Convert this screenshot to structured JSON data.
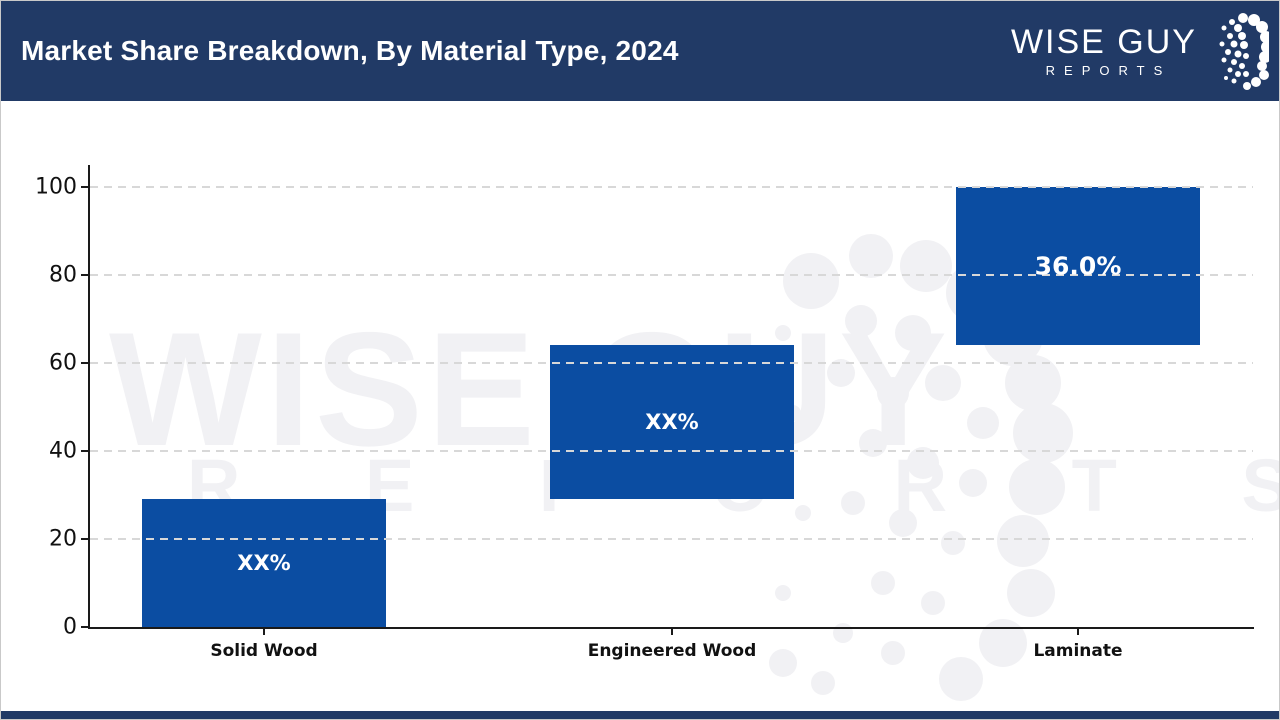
{
  "header": {
    "title": "Market Share Breakdown, By Material Type, 2024",
    "logo_line1": "WISE GUY",
    "logo_line2": "REPORTS"
  },
  "watermark": {
    "line1": "WISE GUY",
    "line2": "REPORTS"
  },
  "colors": {
    "header_bg": "#213a66",
    "footer_bg": "#213a66",
    "bar": "#0b4da2",
    "gridline": "#d8d8d8",
    "axis": "#1a1a1a",
    "watermark": "#f1f1f4"
  },
  "chart_data": {
    "type": "bar",
    "variant": "waterfall-stacked",
    "title": "Market Share Breakdown, By Material Type, 2024",
    "categories": [
      "Solid Wood",
      "Engineered Wood",
      "Laminate"
    ],
    "bars": [
      {
        "category": "Solid Wood",
        "start": 0,
        "end": 29,
        "value_label": "XX%"
      },
      {
        "category": "Engineered Wood",
        "start": 29,
        "end": 64,
        "value_label": "XX%"
      },
      {
        "category": "Laminate",
        "start": 64,
        "end": 100,
        "value_label": "36.0%"
      }
    ],
    "yticks": [
      0,
      20,
      40,
      60,
      80,
      100
    ],
    "ylim": [
      0,
      105
    ],
    "xlabel": "",
    "ylabel": "",
    "grid": "horizontal-dashed",
    "legend": "none",
    "bar_color": "#0b4da2"
  }
}
